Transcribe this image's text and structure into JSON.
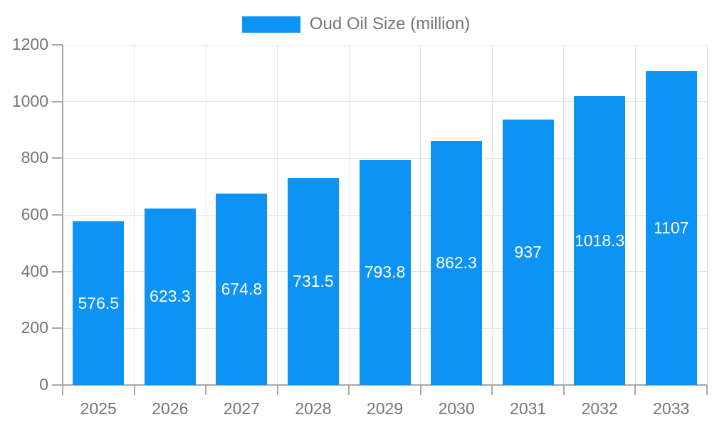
{
  "legend": {
    "label": "Oud Oil Size (million)"
  },
  "colors": {
    "bar": "#0d92f5",
    "axis": "#a6a6a6",
    "grid": "#e4e4e4",
    "text": "#757575",
    "bar_label": "#ffffff",
    "background": "#ffffff"
  },
  "chart_data": {
    "type": "bar",
    "title": "",
    "series_name": "Oud Oil Size (million)",
    "categories": [
      "2025",
      "2026",
      "2027",
      "2028",
      "2029",
      "2030",
      "2031",
      "2032",
      "2033"
    ],
    "values": [
      576.5,
      623.3,
      674.8,
      731.5,
      793.8,
      862.3,
      937,
      1018.3,
      1107
    ],
    "bar_labels": [
      "576.5",
      "623.3",
      "674.8",
      "731.5",
      "793.8",
      "862.3",
      "937",
      "1018.3",
      "1107"
    ],
    "xlabel": "",
    "ylabel": "",
    "ylim": [
      0,
      1200
    ],
    "yticks": [
      0,
      200,
      400,
      600,
      800,
      1000,
      1200
    ],
    "grid": true,
    "legend_position": "top",
    "bar_labels_visible": true
  }
}
